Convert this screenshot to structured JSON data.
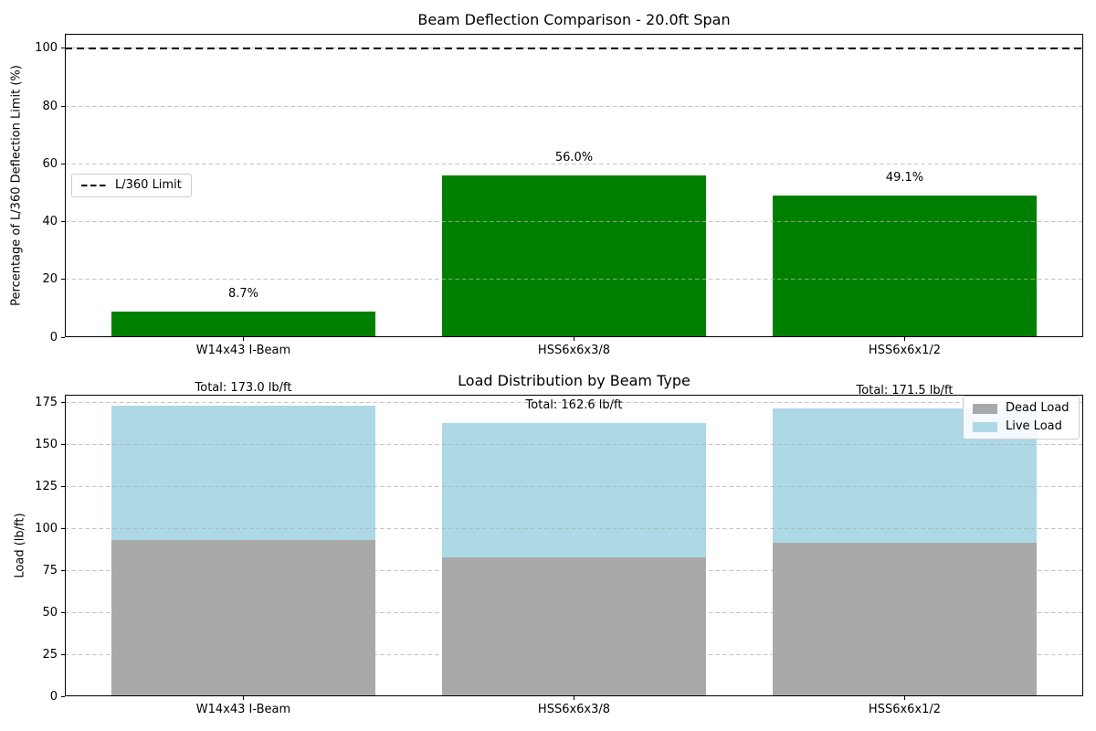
{
  "figure": {
    "background": "#ffffff"
  },
  "chart_data": [
    {
      "type": "bar",
      "title": "Beam Deflection Comparison - 20.0ft Span",
      "xlabel": "",
      "ylabel": "Percentage of L/360 Deflection Limit (%)",
      "categories": [
        "W14x43 I-Beam",
        "HSS6x6x3/8",
        "HSS6x6x1/2"
      ],
      "values": [
        8.7,
        56.0,
        49.1
      ],
      "bar_labels": [
        "8.7%",
        "56.0%",
        "49.1%"
      ],
      "bar_color": "#008000",
      "ylim": [
        0,
        105
      ],
      "yticks": [
        0,
        20,
        40,
        60,
        80,
        100
      ],
      "grid": "horizontal-dashed",
      "reference_line": {
        "y": 100,
        "style": "dashed",
        "color": "#000000",
        "label": "L/360 Limit"
      },
      "legend": {
        "position": "center-left",
        "entries": [
          {
            "label": "L/360 Limit",
            "marker": "dashed-line",
            "color": "#000000"
          }
        ]
      }
    },
    {
      "type": "stacked-bar",
      "title": "Load Distribution by Beam Type",
      "xlabel": "",
      "ylabel": "Load (lb/ft)",
      "categories": [
        "W14x43 I-Beam",
        "HSS6x6x3/8",
        "HSS6x6x1/2"
      ],
      "series": [
        {
          "name": "Dead Load",
          "color": "#a9a9a9",
          "values": [
            93.0,
            82.6,
            91.5
          ]
        },
        {
          "name": "Live Load",
          "color": "#add8e6",
          "values": [
            80.0,
            80.0,
            80.0
          ]
        }
      ],
      "totals": [
        173.0,
        162.6,
        171.5
      ],
      "total_labels": [
        "Total: 173.0 lb/ft",
        "Total: 162.6 lb/ft",
        "Total: 171.5 lb/ft"
      ],
      "ylim": [
        0,
        179.5
      ],
      "yticks": [
        0,
        25,
        50,
        75,
        100,
        125,
        150,
        175
      ],
      "grid": "horizontal-dashed",
      "legend": {
        "position": "upper-right",
        "entries": [
          {
            "label": "Dead Load",
            "marker": "patch",
            "color": "#a9a9a9"
          },
          {
            "label": "Live Load",
            "marker": "patch",
            "color": "#add8e6"
          }
        ]
      }
    }
  ]
}
